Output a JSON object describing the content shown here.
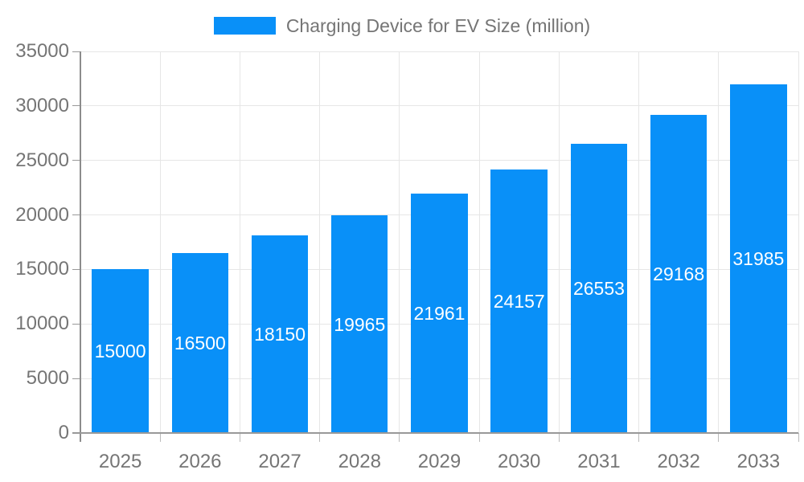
{
  "chart_data": {
    "type": "bar",
    "title": "Charging Device for EV Size (million)",
    "legend": {
      "label": "Charging Device for EV Size (million)",
      "position": "top"
    },
    "categories": [
      "2025",
      "2026",
      "2027",
      "2028",
      "2029",
      "2030",
      "2031",
      "2032",
      "2033"
    ],
    "series": [
      {
        "name": "Charging Device for EV Size (million)",
        "values": [
          15000,
          16500,
          18150,
          19965,
          21961,
          24157,
          26553,
          29168,
          31985
        ]
      }
    ],
    "xlabel": "",
    "ylabel": "",
    "ylim": [
      0,
      35000
    ],
    "ytick_step": 5000,
    "yticks": [
      0,
      5000,
      10000,
      15000,
      20000,
      25000,
      30000,
      35000
    ],
    "grid": true,
    "value_labels": "inside-center"
  },
  "colors": {
    "bar": "#0990F8",
    "bar_label": "#FFFFFF",
    "axis_text": "#757575",
    "grid_line": "#E6E6E6",
    "axis_line": "#999999"
  }
}
